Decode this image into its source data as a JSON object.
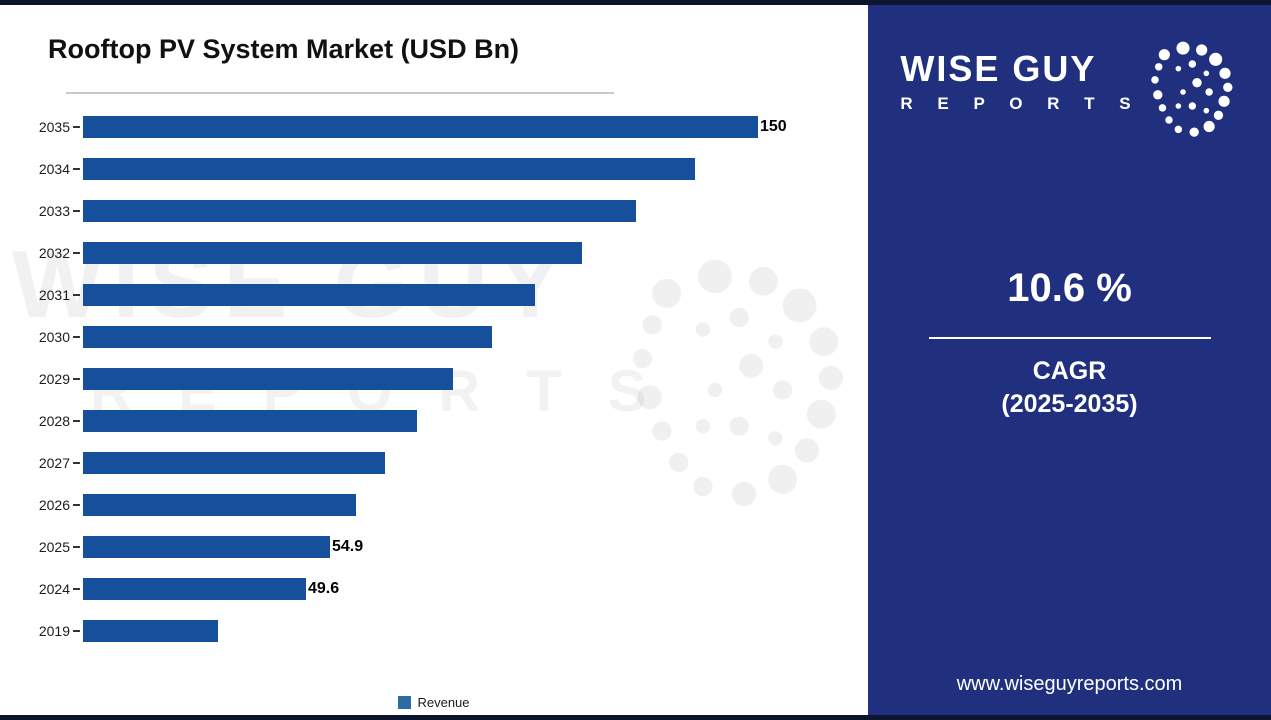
{
  "title": "Rooftop PV System Market (USD Bn)",
  "chart_data": {
    "type": "bar",
    "orientation": "horizontal",
    "title": "Rooftop PV System Market (USD Bn)",
    "categories": [
      "2035",
      "2034",
      "2033",
      "2032",
      "2031",
      "2030",
      "2029",
      "2028",
      "2027",
      "2026",
      "2025",
      "2024",
      "2019"
    ],
    "series": [
      {
        "name": "Revenue",
        "values": [
          150,
          136,
          123,
          111,
          100.5,
          91,
          82.2,
          74.3,
          67.2,
          60.7,
          54.9,
          49.6,
          30
        ]
      }
    ],
    "data_labels": {
      "2035": "150",
      "2025": "54.9",
      "2024": "49.6"
    },
    "xlim": [
      0,
      155
    ],
    "bar_color": "#164f9c",
    "legend_position": "bottom",
    "legend": [
      {
        "label": "Revenue",
        "color": "#2b6ca3"
      }
    ]
  },
  "watermark": {
    "line1": "WISE GUY",
    "line2": "REPORTS"
  },
  "panel": {
    "bg_color": "#20307f",
    "logo_line1": "WISE GUY",
    "logo_line2": "R E P O R T S",
    "cagr_value": "10.6 %",
    "cagr_label": "CAGR",
    "cagr_period": "(2025-2035)",
    "website": "www.wiseguyreports.com"
  }
}
